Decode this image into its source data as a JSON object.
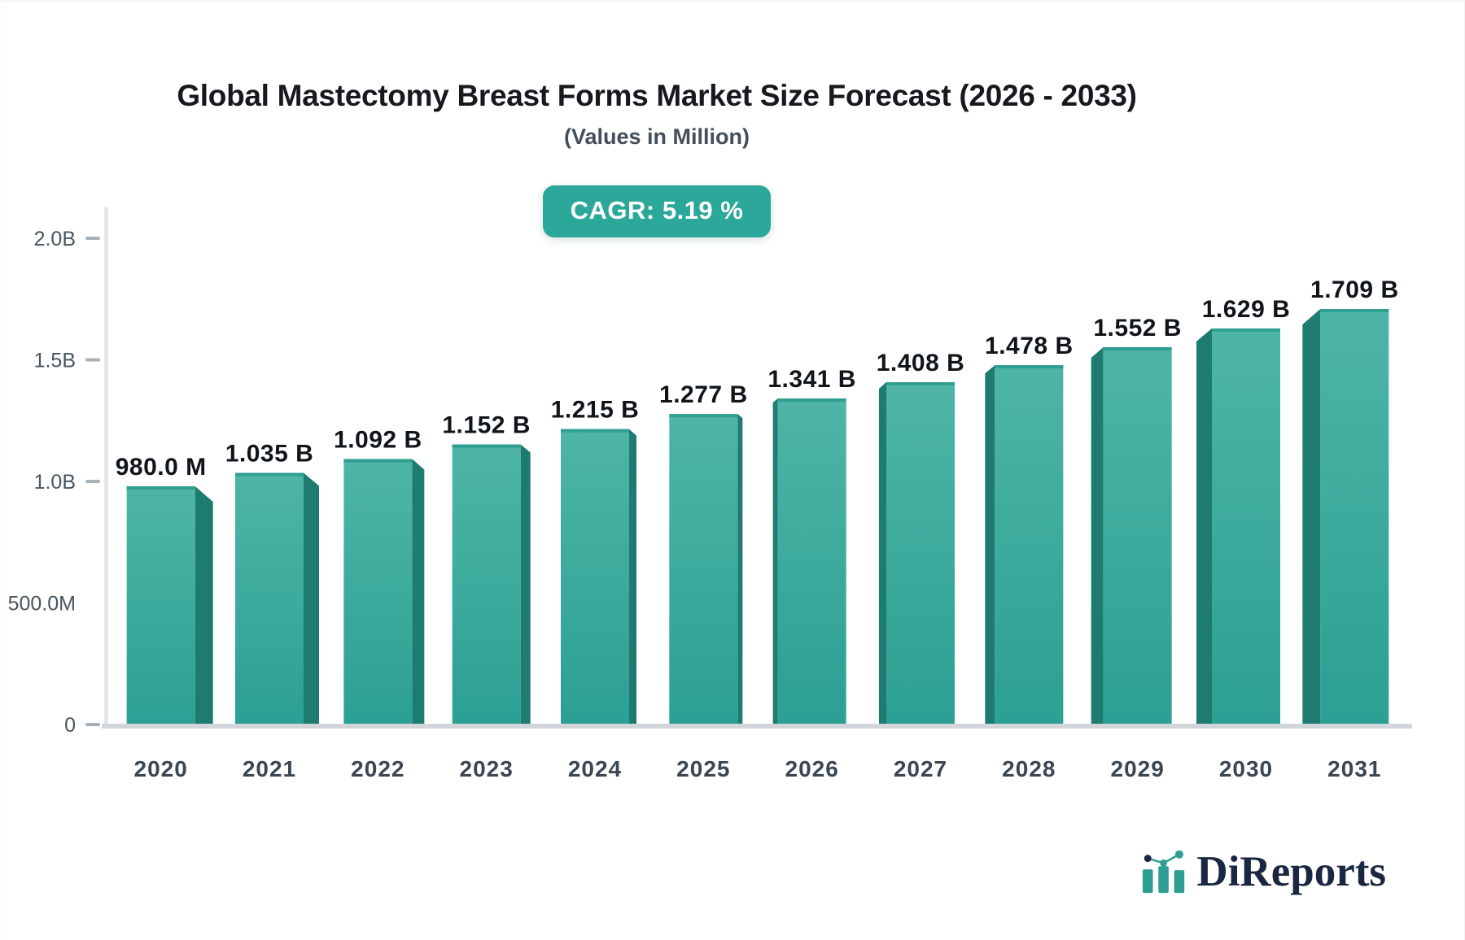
{
  "chart_data": {
    "type": "bar",
    "title": "Global Mastectomy Breast Forms Market Size Forecast (2026 - 2033)",
    "subtitle": "(Values in Million)",
    "annotation_badge": "CAGR: 5.19 %",
    "categories": [
      "2020",
      "2021",
      "2022",
      "2023",
      "2024",
      "2025",
      "2026",
      "2027",
      "2028",
      "2029",
      "2030",
      "2031"
    ],
    "values_millions": [
      980,
      1035,
      1092,
      1152,
      1215,
      1277,
      1341,
      1408,
      1478,
      1552,
      1629,
      1709
    ],
    "value_labels": [
      "980.0 M",
      "1.035 B",
      "1.092 B",
      "1.152 B",
      "1.215 B",
      "1.277 B",
      "1.341 B",
      "1.408 B",
      "1.478 B",
      "1.552 B",
      "1.629 B",
      "1.709 B"
    ],
    "unit": "Million",
    "grid": false,
    "legend": "none",
    "y_axis": {
      "max_millions": 2000,
      "ticks": [
        {
          "label": "2.0B",
          "millions": 2000,
          "dash": true
        },
        {
          "label": "1.5B",
          "millions": 1500,
          "dash": true
        },
        {
          "label": "1.0B",
          "millions": 1000,
          "dash": true
        },
        {
          "label": "500.0M",
          "millions": 500,
          "dash": false
        },
        {
          "label": "0",
          "millions": 0,
          "dash": true
        }
      ]
    }
  },
  "branding": {
    "logo_text": "DiReports",
    "logo_icon": "bar-chart-with-trend-dots-icon"
  },
  "colors": {
    "title": "#16191d",
    "subtitle": "#434f5b",
    "badge_bg": "#2ba89a",
    "badge_text": "#ffffff",
    "bar_face_top": "#4eb5a6",
    "bar_face_bottom": "#2ba093",
    "bar_top_edge": "#2f9f90",
    "bar_side": "#1e7b6f",
    "value_label": "#10151b",
    "year_label": "#3a4653",
    "y_label": "#49555f",
    "tick_dash": "#a8b0b8",
    "axis_line": "#e4e7ea",
    "baseline": "#d2d6db",
    "logo_text_color": "#1a2740",
    "logo_teal": "#2f9e92"
  }
}
